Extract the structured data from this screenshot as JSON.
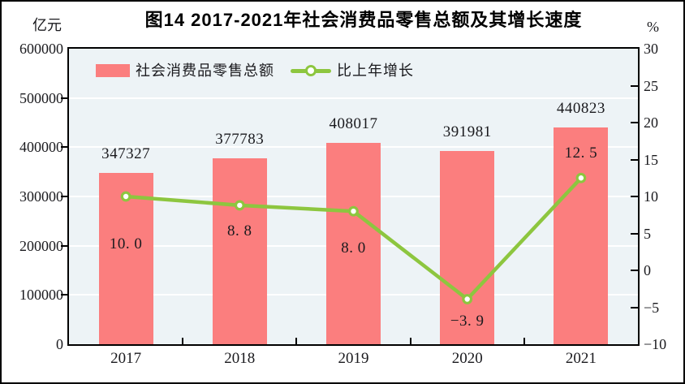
{
  "figure": {
    "bg": "#ffffff",
    "border_color": "#000000"
  },
  "chart_data": {
    "type": "bar+line combo",
    "title": "图14  2017-2021年社会消费品零售总额及其增长速度",
    "categories": [
      "2017",
      "2018",
      "2019",
      "2020",
      "2021"
    ],
    "series": [
      {
        "name": "社会消费品零售总额",
        "type": "bar",
        "axis": "left",
        "color": "#fb7e7e",
        "values": [
          347327,
          377783,
          408017,
          391981,
          440823
        ],
        "value_labels": [
          "347327",
          "377783",
          "408017",
          "391981",
          "440823"
        ]
      },
      {
        "name": "比上年增长",
        "type": "line",
        "axis": "right",
        "color": "#8dc63f",
        "marker": "circle-white-fill-green-ring",
        "values": [
          10.0,
          8.8,
          8.0,
          -3.9,
          12.5
        ],
        "value_labels": [
          "10. 0",
          "8. 8",
          "8. 0",
          "−3. 9",
          "12. 5"
        ],
        "label_side": [
          "below",
          "below",
          "below",
          "below",
          "above"
        ]
      }
    ],
    "left_axis": {
      "unit": "亿元",
      "min": 0,
      "max": 600000,
      "step": 100000,
      "tick_labels": [
        "0",
        "100000",
        "200000",
        "300000",
        "400000",
        "500000",
        "600000"
      ]
    },
    "right_axis": {
      "unit": "%",
      "min": -10,
      "max": 30,
      "step": 5,
      "tick_labels": [
        "−10",
        "−5",
        "0",
        "5",
        "10",
        "15",
        "20",
        "25",
        "30"
      ]
    },
    "plot_bg": "#edf3f6",
    "grid_color": "#ffffff",
    "grid": "horizontal white lines at left-axis 100000 steps",
    "legend_position": "top-left inside plot"
  },
  "legend": {
    "items": [
      {
        "label": "社会消费品零售总额",
        "swatch": "bar",
        "color": "#fb7e7e"
      },
      {
        "label": "比上年增长",
        "swatch": "line-with-circle-marker",
        "color": "#8dc63f"
      }
    ]
  }
}
